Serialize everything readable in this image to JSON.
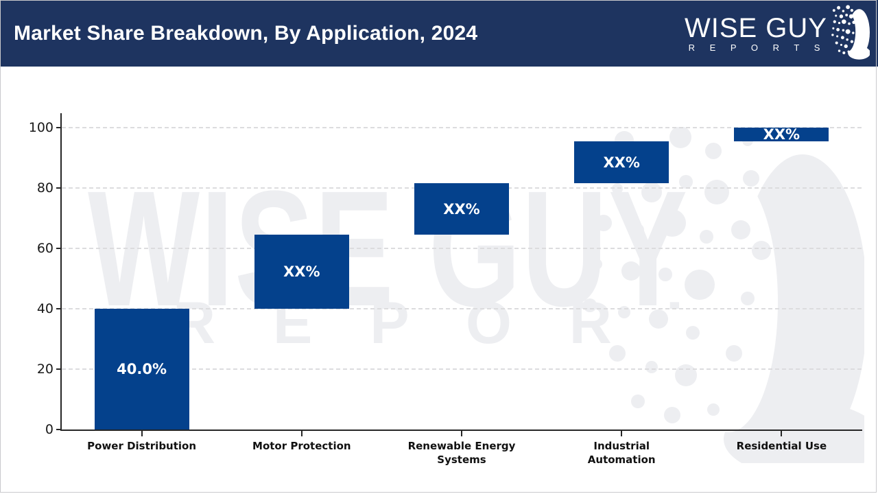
{
  "header": {
    "title": "Market Share Breakdown, By Application, 2024",
    "bg_color": "#1E3460",
    "logo": {
      "name": "WISE GUY",
      "subtitle": "R E P O R T S"
    }
  },
  "watermark": {
    "line1": "WISE GUY",
    "line2": "R E P O R T S"
  },
  "chart_data": {
    "type": "bar",
    "subtype": "waterfall",
    "title": "Market Share Breakdown, By Application, 2024",
    "categories": [
      "Power Distribution",
      "Motor Protection",
      "Renewable Energy\nSystems",
      "Industrial\nAutomation",
      "Residential Use"
    ],
    "segments": [
      {
        "category": "Power Distribution",
        "start": 0,
        "end": 40,
        "label": "40.0%"
      },
      {
        "category": "Motor Protection",
        "start": 40,
        "end": 64.5,
        "label": "XX%"
      },
      {
        "category": "Renewable Energy Systems",
        "start": 64.5,
        "end": 81.5,
        "label": "XX%"
      },
      {
        "category": "Industrial Automation",
        "start": 81.5,
        "end": 95.5,
        "label": "XX%"
      },
      {
        "category": "Residential Use",
        "start": 95.5,
        "end": 100,
        "label": "XX%"
      }
    ],
    "yticks": [
      0,
      20,
      40,
      60,
      80,
      100
    ],
    "ylim": [
      0,
      105
    ],
    "xlabel": "",
    "ylabel": "",
    "grid": "horizontal-dashed",
    "legend": "none",
    "bar_color": "#04418C",
    "bar_label_color": "#FFFFFF",
    "axis_color": "#262626"
  }
}
